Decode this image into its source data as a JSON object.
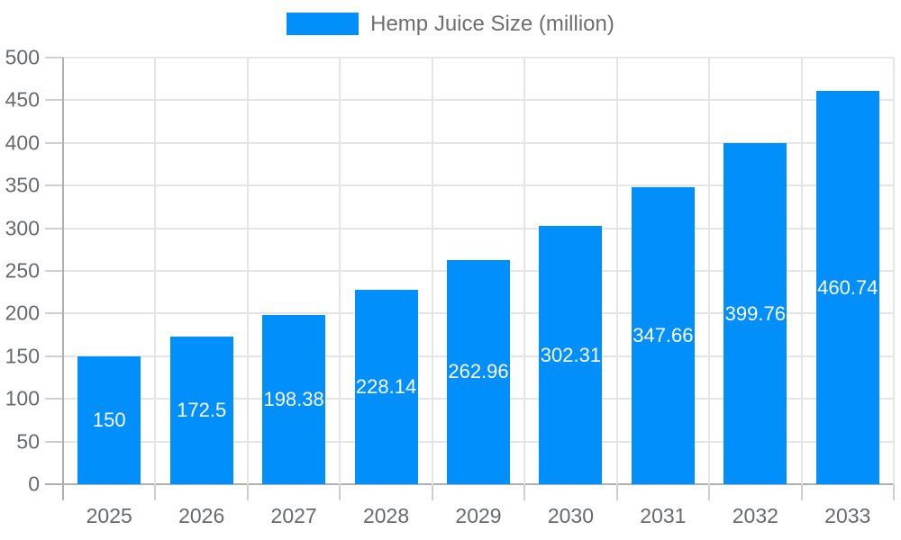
{
  "chart_data": {
    "type": "bar",
    "title": "",
    "legend": "Hemp Juice Size (million)",
    "legend_position": "top",
    "categories": [
      "2025",
      "2026",
      "2027",
      "2028",
      "2029",
      "2030",
      "2031",
      "2032",
      "2033"
    ],
    "values": [
      150,
      172.5,
      198.38,
      228.14,
      262.96,
      302.31,
      347.66,
      399.76,
      460.74
    ],
    "value_labels": [
      "150",
      "172.5",
      "198.38",
      "228.14",
      "262.96",
      "302.31",
      "347.66",
      "399.76",
      "460.74"
    ],
    "xlabel": "",
    "ylabel": "",
    "ylim": [
      0,
      500
    ],
    "yticks": [
      0,
      50,
      100,
      150,
      200,
      250,
      300,
      350,
      400,
      450,
      500
    ],
    "grid": true,
    "colors": {
      "bar": "#008FFB",
      "data_label": "#ffffff",
      "axis_label": "#666a6e",
      "legend_text": "#6e6e6e",
      "grid_line": "#e5e5e5",
      "tick_line": "#cfcfcf",
      "axis_line": "#b0b0b0",
      "background": "#ffffff"
    }
  }
}
